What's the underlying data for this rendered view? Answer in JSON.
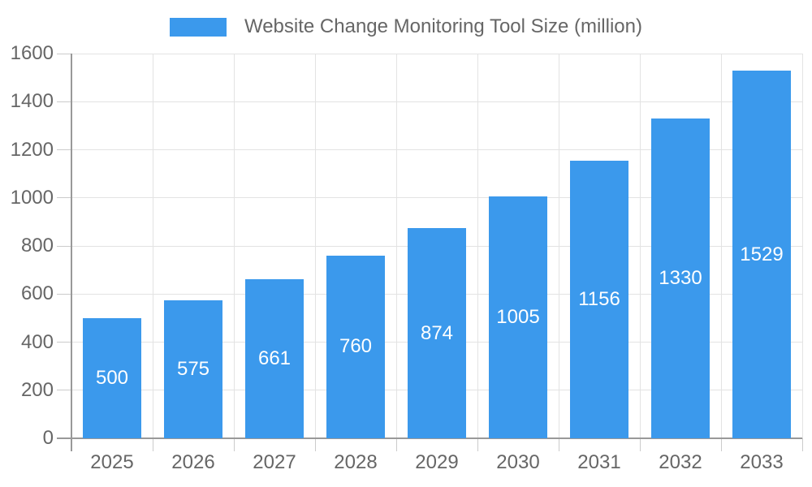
{
  "chart_data": {
    "type": "bar",
    "title": "Website Change Monitoring Tool Size (million)",
    "categories": [
      "2025",
      "2026",
      "2027",
      "2028",
      "2029",
      "2030",
      "2031",
      "2032",
      "2033"
    ],
    "values": [
      500,
      575,
      661,
      760,
      874,
      1005,
      1156,
      1330,
      1529
    ],
    "xlabel": "",
    "ylabel": "",
    "ylim": [
      0,
      1600
    ],
    "yticks": [
      0,
      200,
      400,
      600,
      800,
      1000,
      1200,
      1400,
      1600
    ],
    "grid": true,
    "legend_position": "top-center",
    "value_labels": "inside-center",
    "colors": {
      "bar": "#3B99EC",
      "value_label": "#FFFFFF",
      "axis_text": "#666666",
      "legend_text": "#666666",
      "grid_line": "#E3E3E3",
      "tick_line": "#CBCBCB",
      "axis_line": "#999999",
      "background": "#FFFFFF"
    }
  }
}
